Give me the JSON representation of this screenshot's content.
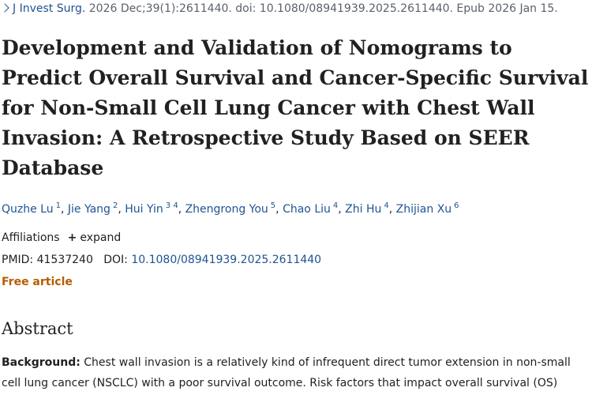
{
  "citation": {
    "journal": "J Invest Surg.",
    "details": " 2026 Dec;39(1):2611440. doi: 10.1080/08941939.2025.2611440. Epub 2026 Jan 15."
  },
  "title": "Development and Validation of Nomograms to Predict Overall Survival and Cancer-Specific Survival for Non-Small Cell Lung Cancer with Chest Wall Invasion: A Retrospective Study Based on SEER Database",
  "authors": [
    {
      "name": "Quzhe Lu",
      "affiliations": "1"
    },
    {
      "name": "Jie Yang",
      "affiliations": "2"
    },
    {
      "name": "Hui Yin",
      "affiliations": "3 4"
    },
    {
      "name": "Zhengrong You",
      "affiliations": "5"
    },
    {
      "name": "Chao Liu",
      "affiliations": "4"
    },
    {
      "name": "Zhi Hu",
      "affiliations": "4"
    },
    {
      "name": "Zhijian Xu",
      "affiliations": "6"
    }
  ],
  "affiliations": {
    "label": "Affiliations",
    "toggle": "expand"
  },
  "identifiers": {
    "pmid_label": "PMID:",
    "pmid": "41537240",
    "doi_label": "DOI:",
    "doi": "10.1080/08941939.2025.2611440"
  },
  "free_article": "Free article",
  "abstract": {
    "heading": "Abstract",
    "label": "Background:",
    "text": " Chest wall invasion is a relatively kind of infrequent direct tumor extension in non-small cell lung cancer (NSCLC) with a poor survival outcome. Risk factors that impact overall survival (OS)"
  }
}
